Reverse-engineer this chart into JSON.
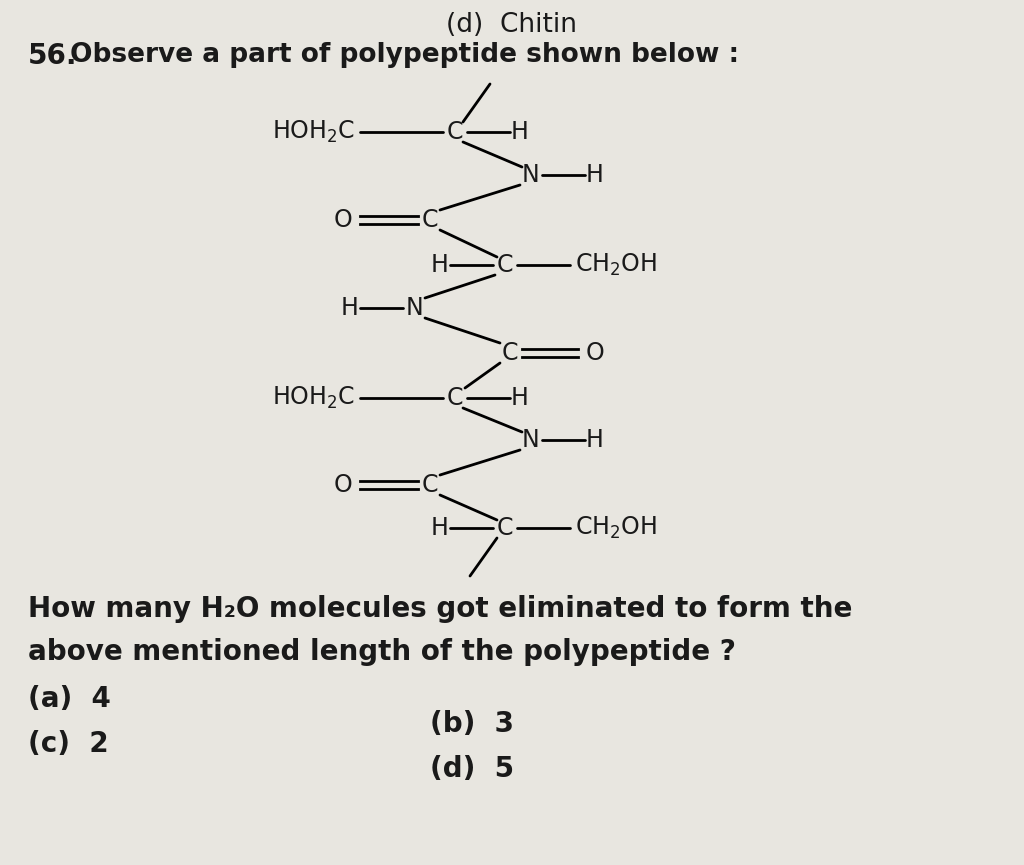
{
  "background_color": "#e8e6e0",
  "text_color": "#1a1a1a",
  "title_number": "56.",
  "title_text": "Observe a part of polypeptide shown below :",
  "header_text": "(d)  Chitin",
  "question_line1": "How many H₂O molecules got eliminated to form the",
  "question_line2": "above mentioned length of the polypeptide ?",
  "opt_a_label": "(a)",
  "opt_a_val": "4",
  "opt_b_label": "(b)",
  "opt_b_val": "3",
  "opt_c_label": "(c)",
  "opt_c_val": "2",
  "opt_d_label": "(d)",
  "opt_d_val": "5",
  "font_size_main": 19,
  "font_size_chem": 17,
  "font_size_title_num": 20,
  "font_size_question": 20,
  "font_size_options": 20
}
